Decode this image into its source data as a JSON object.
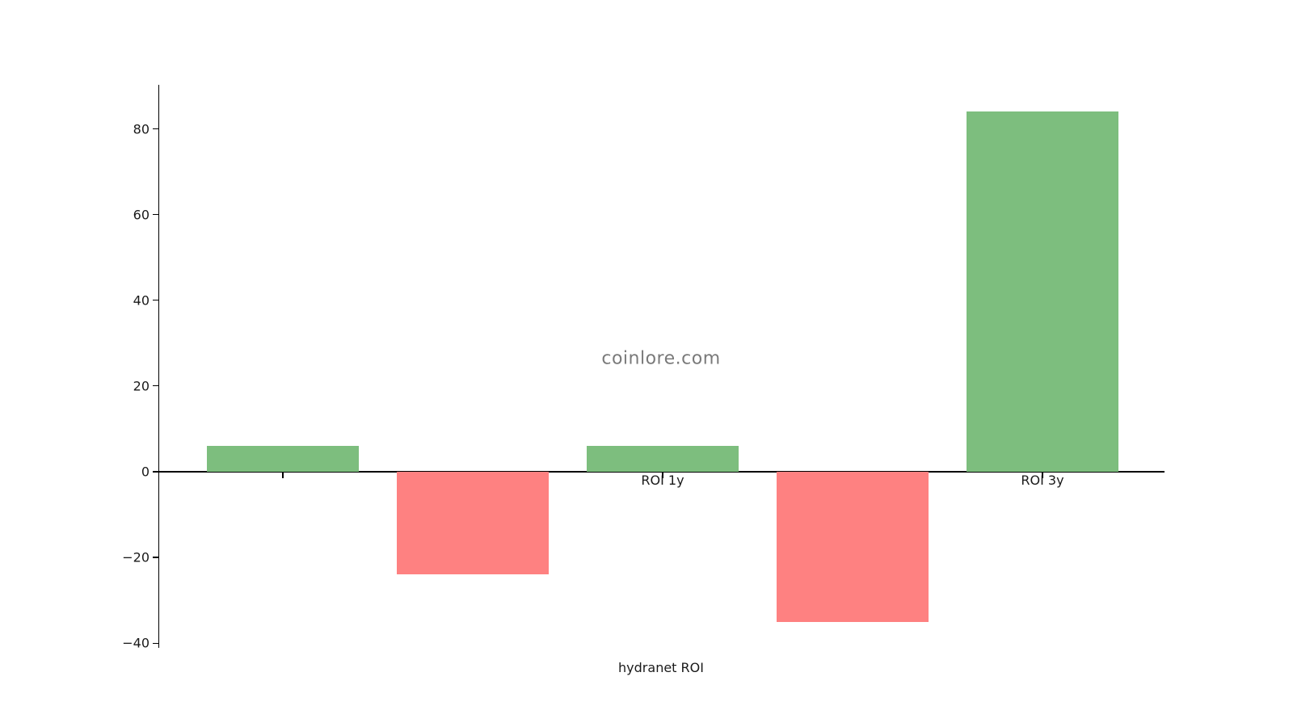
{
  "watermark": {
    "text": "coinlore.com",
    "color": "#7a7a7a"
  },
  "chart_data": {
    "type": "bar",
    "title": "",
    "xlabel": "hydranet ROI",
    "ylabel": "",
    "categories": [
      "",
      "",
      "ROI 1y",
      "",
      "ROI 3y"
    ],
    "values": [
      6,
      -24,
      6,
      -35,
      84
    ],
    "x_ticks": [
      {
        "position": 0,
        "label": ""
      },
      {
        "position": 2,
        "label": "ROI 1y"
      },
      {
        "position": 4,
        "label": "ROI 3y"
      }
    ],
    "y_ticks": [
      80,
      60,
      40,
      20,
      0,
      -20,
      -40
    ],
    "ylim": [
      -41,
      90
    ],
    "grid": false,
    "legend": null,
    "colors": {
      "positive": "#7DBE7E",
      "negative": "#FE8181",
      "axis": "#000000",
      "tick_label": "#1a1a1a"
    }
  }
}
